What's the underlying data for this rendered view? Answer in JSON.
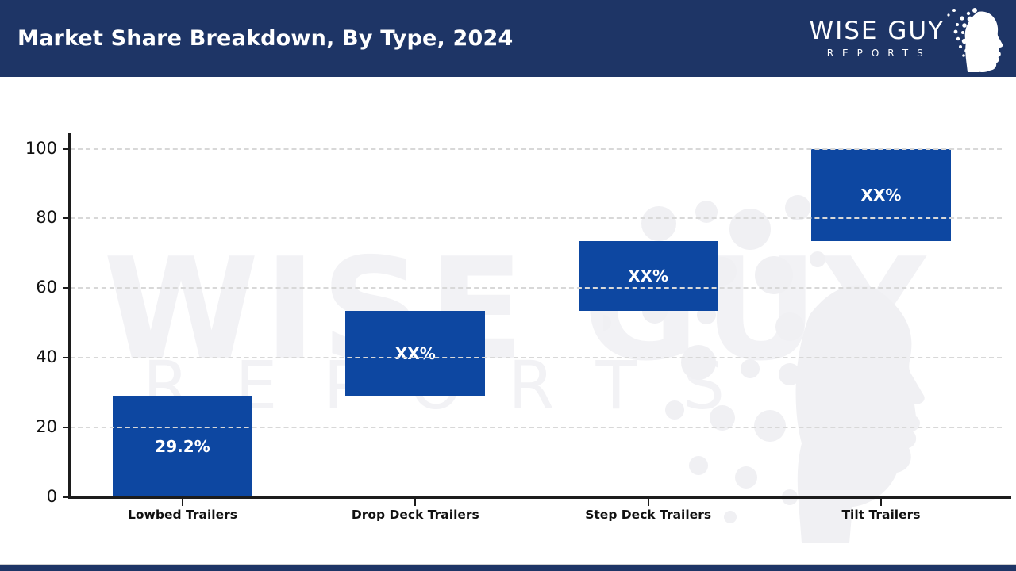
{
  "header": {
    "title": "Market Share Breakdown, By Type, 2024",
    "logo": {
      "line1": "WISE GUY",
      "line2": "REPORTS"
    }
  },
  "watermark": {
    "line1": "WISE GUY",
    "line2": "REPORTS"
  },
  "colors": {
    "header_bg": "#1e3566",
    "footer_bg": "#1e3566",
    "bar_fill": "#0d47a1",
    "bar_label_text": "#ffffff",
    "axis": "#1c1c1c",
    "gridline": "#d8d8d8",
    "tick_label_text": "#111111",
    "watermark": "#f2f2f5"
  },
  "chart_data": {
    "type": "bar",
    "subtype": "floating-waterfall",
    "title": "Market Share Breakdown, By Type, 2024",
    "xlabel": "",
    "ylabel": "",
    "categories": [
      "Lowbed Trailers",
      "Drop Deck Trailers",
      "Step Deck Trailers",
      "Tilt Trailers"
    ],
    "bars": [
      {
        "category": "Lowbed Trailers",
        "base": 0,
        "top": 29.2,
        "label": "29.2%"
      },
      {
        "category": "Drop Deck Trailers",
        "base": 29.2,
        "top": 53.4,
        "label": "XX%"
      },
      {
        "category": "Step Deck Trailers",
        "base": 53.4,
        "top": 73.6,
        "label": "XX%"
      },
      {
        "category": "Tilt Trailers",
        "base": 73.6,
        "top": 100,
        "label": "XX%"
      }
    ],
    "yticks": [
      0,
      20,
      40,
      60,
      80,
      100
    ],
    "ylim": [
      0,
      104
    ],
    "grid": "dashed-horizontal",
    "legend": "none"
  }
}
